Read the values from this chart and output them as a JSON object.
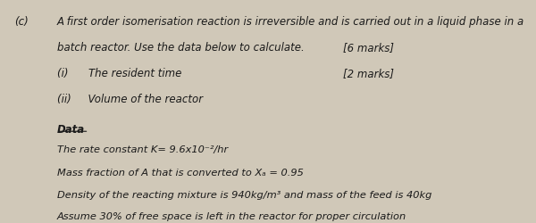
{
  "bg_color": "#d0c8b8",
  "paper_color": "#e8e4da",
  "label_c": "(c)",
  "line1": "A first order isomerisation reaction is irreversible and is carried out in a liquid phase in a",
  "line2": "batch reactor. Use the data below to calculate.",
  "marks1": "[6 marks]",
  "marks2": "[2 marks]",
  "item_i": "(i)      The resident time",
  "item_ii": "(ii)     Volume of the reactor",
  "data_header": "Data",
  "data1": "The rate constant K= 9.6x10⁻²/hr",
  "data2": "Mass fraction of A that is converted to Xₐ = 0.95",
  "data3": "Density of the reacting mixture is 940kg/m³ and mass of the feed is 40kg",
  "data4": "Assume 30% of free space is left in the reactor for proper circulation",
  "font_size_main": 8.5,
  "font_size_data": 8.2,
  "text_color": "#1a1a1a"
}
